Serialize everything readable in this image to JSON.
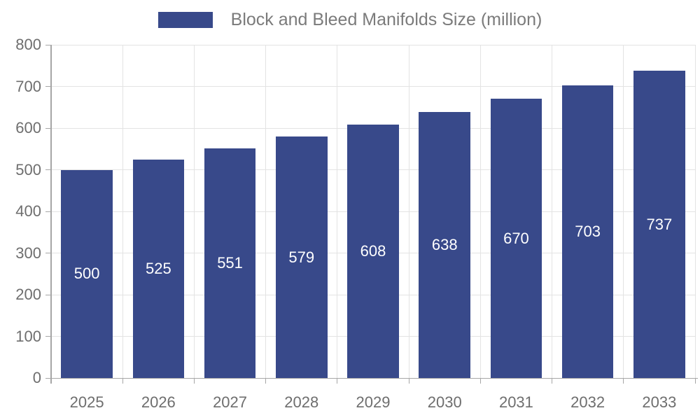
{
  "legend": {
    "label": "Block and Bleed Manifolds Size (million)"
  },
  "colors": {
    "bar": "#38498a",
    "grid": "#e3e3e3",
    "axis": "#a6a6a6",
    "tick_label": "#6e6e6e",
    "legend_text": "#7b7b7b",
    "value_label": "#ffffff"
  },
  "chart_data": {
    "type": "bar",
    "title": "Block and Bleed Manifolds Size (million)",
    "categories": [
      "2025",
      "2026",
      "2027",
      "2028",
      "2029",
      "2030",
      "2031",
      "2032",
      "2033"
    ],
    "values": [
      500,
      525,
      551,
      579,
      608,
      638,
      670,
      703,
      737
    ],
    "xlabel": "",
    "ylabel": "",
    "ylim": [
      0,
      800
    ],
    "yticks": [
      0,
      100,
      200,
      300,
      400,
      500,
      600,
      700,
      800
    ],
    "grid": true,
    "legend_position": "top",
    "value_labels": "inside-center",
    "bar_width_fraction": 0.72
  }
}
